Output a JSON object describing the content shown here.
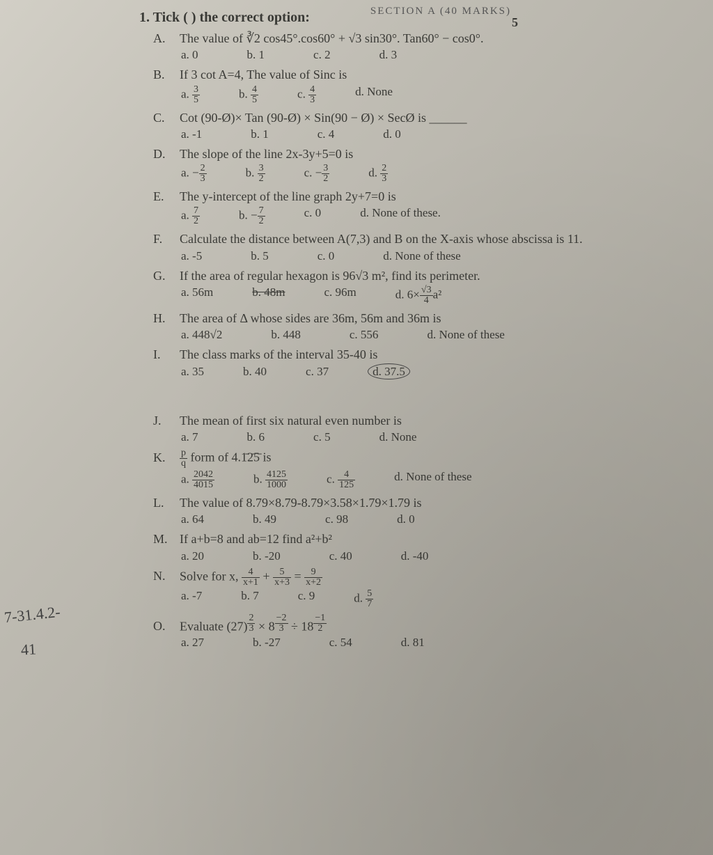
{
  "header": {
    "section_label": "SECTION A (40 MARKS)",
    "title": "1. Tick (  ) the correct option:",
    "page_number": "5"
  },
  "questions": [
    {
      "letter": "A.",
      "text": "The value of ∛2 cos45°.cos60° + √3 sin30°. Tan60° − cos0°.",
      "opts": [
        "a. 0",
        "b. 1",
        "c. 2",
        "d. 3"
      ]
    },
    {
      "letter": "B.",
      "text": "If 3 cot A=4, The value of Sinc is",
      "opts_html": [
        "a. <span class='frac'><span class='n'>3</span><span class='d'>5</span></span>",
        "b. <span class='frac'><span class='n'>4</span><span class='d'>5</span></span>",
        "c. <span class='frac'><span class='n'>4</span><span class='d'>3</span></span>",
        "d. None"
      ]
    },
    {
      "letter": "C.",
      "text": "Cot (90-Ø)× Tan (90-Ø) × Sin(90 − Ø) × SecØ is ______",
      "opts": [
        "a. -1",
        "b. 1",
        "c. 4",
        "d. 0"
      ]
    },
    {
      "letter": "D.",
      "text": "The slope of the line 2x-3y+5=0 is",
      "opts_html": [
        "a. −<span class='frac'><span class='n'>2</span><span class='d'>3</span></span>",
        "b. <span class='frac'><span class='n'>3</span><span class='d'>2</span></span>",
        "c. −<span class='frac'><span class='n'>3</span><span class='d'>2</span></span>",
        "d. <span class='frac'><span class='n'>2</span><span class='d'>3</span></span>"
      ]
    },
    {
      "letter": "E.",
      "text": "The y-intercept of the line graph 2y+7=0 is",
      "opts_html": [
        "a. <span class='frac'><span class='n'>7</span><span class='d'>2</span></span>",
        "b. −<span class='frac'><span class='n'>7</span><span class='d'>2</span></span>",
        "c. 0",
        "d. None of these."
      ]
    },
    {
      "letter": "F.",
      "text": "Calculate the distance between A(7,3) and B on the X-axis whose abscissa is 11.",
      "opts": [
        "a. -5",
        "b. 5",
        "c. 0",
        "d. None of these"
      ]
    },
    {
      "letter": "G.",
      "text": "If the area of regular hexagon is 96√3 m², find its perimeter.",
      "opts_html": [
        "a. 56m",
        "<span style='text-decoration:line-through;'>b. 48m</span>",
        "c. 96m",
        "d. 6×<span class='frac'><span class='n'>√3</span><span class='d'>4</span></span>a²"
      ]
    },
    {
      "letter": "H.",
      "text": "The area of Δ whose sides are 36m, 56m and 36m is",
      "opts": [
        "a. 448√2",
        "b. 448",
        "c. 556",
        "d. None of these"
      ]
    },
    {
      "letter": "I.",
      "text": "The class marks of the interval 35-40 is",
      "opts_html": [
        "a. 35",
        "b. 40",
        "c. 37",
        "<span class='circle'>d. 37.5</span>"
      ]
    },
    {
      "letter": "J.",
      "text": "The  mean of first six natural even number is",
      "opts": [
        "a. 7",
        "b. 6",
        "c. 5",
        "d. None"
      ]
    },
    {
      "letter": "K.",
      "text_html": "<span class='frac'><span class='n'>p</span><span class='d'>q</span></span> form of 4.1̄2̄5̄ is",
      "opts_html": [
        "a. <span class='frac'><span class='n'>2042</span><span class='d'>4015</span></span>",
        "b. <span class='frac'><span class='n'>4125</span><span class='d'>1000</span></span>",
        "c. <span class='frac'><span class='n'>4</span><span class='d'>125</span></span>",
        "d. None of these"
      ]
    },
    {
      "letter": "L.",
      "text": "The value of 8.79×8.79-8.79×3.58×1.79×1.79 is",
      "opts": [
        "a. 64",
        "b. 49",
        "c. 98",
        "d. 0"
      ]
    },
    {
      "letter": "M.",
      "text": "If a+b=8 and ab=12 find a²+b²",
      "opts": [
        "a. 20",
        "b. -20",
        "c. 40",
        "d. -40"
      ]
    },
    {
      "letter": "N.",
      "text_html": "Solve for x, <span class='frac'><span class='n'>4</span><span class='d'>x+1</span></span> + <span class='frac'><span class='n'>5</span><span class='d'>x+3</span></span> = <span class='frac'><span class='n'>9</span><span class='d'>x+2</span></span>",
      "opts_html": [
        "a. -7",
        "b. 7",
        "c. 9",
        "d. <span class='frac'><span class='n'>5</span><span class='d'>7</span></span>"
      ]
    },
    {
      "letter": "O.",
      "text_html": "Evaluate (27)<sup><span class='frac'><span class='n'>2</span><span class='d'>3</span></span></sup> × 8<sup><span class='frac'><span class='n'>−2</span><span class='d'>3</span></span></sup> ÷ 18<sup><span class='frac'><span class='n'>−1</span><span class='d'>2</span></span></sup>",
      "opts": [
        "a. 27",
        "b. -27",
        "c. 54",
        "d. 81"
      ]
    }
  ],
  "handwriting": {
    "left1": "7-31.4.2-",
    "left2": "41"
  }
}
